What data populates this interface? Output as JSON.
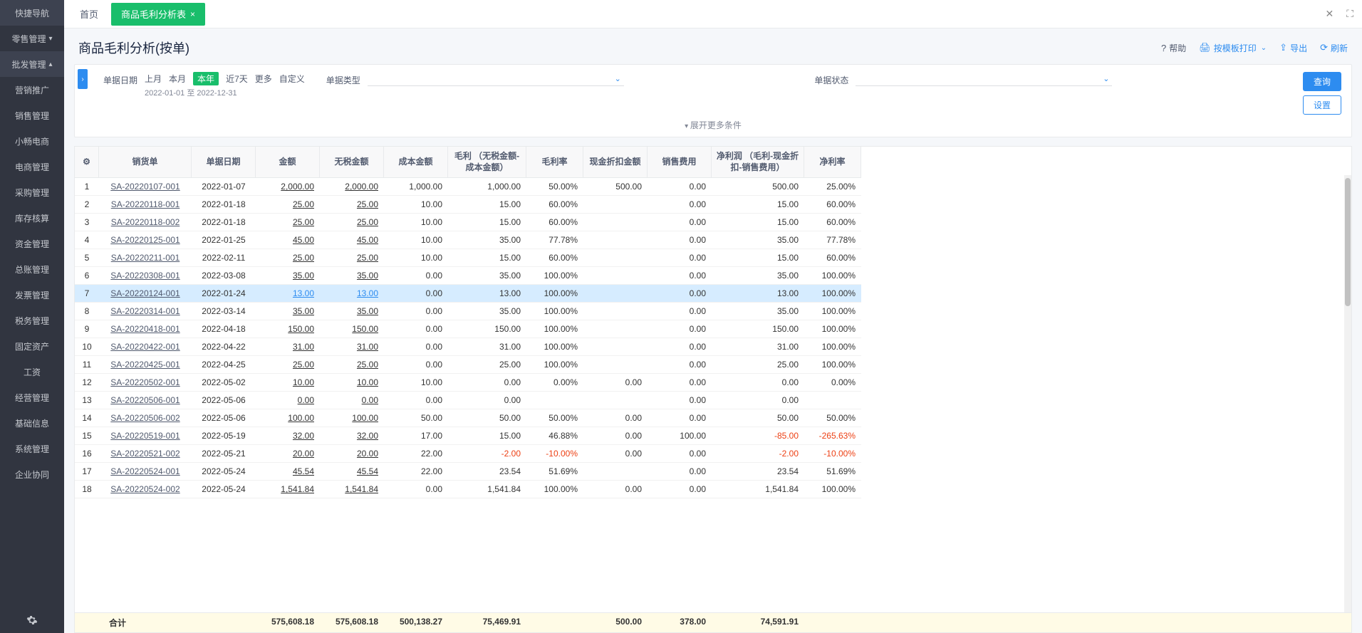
{
  "sidebar": {
    "items": [
      {
        "label": "快捷导航",
        "caret": ""
      },
      {
        "label": "零售管理",
        "caret": "▾"
      },
      {
        "label": "批发管理",
        "caret": "▴",
        "expanded": true,
        "children": [
          {
            "label": "营销推广"
          },
          {
            "label": "销售管理"
          }
        ]
      },
      {
        "label": "小畅电商",
        "caret": ""
      },
      {
        "label": "电商管理",
        "caret": ""
      },
      {
        "label": "采购管理",
        "caret": ""
      },
      {
        "label": "库存核算",
        "caret": ""
      },
      {
        "label": "资金管理",
        "caret": ""
      },
      {
        "label": "总账管理",
        "caret": ""
      },
      {
        "label": "发票管理",
        "caret": ""
      },
      {
        "label": "税务管理",
        "caret": ""
      },
      {
        "label": "固定资产",
        "caret": ""
      },
      {
        "label": "工资",
        "caret": ""
      },
      {
        "label": "经营管理",
        "caret": ""
      },
      {
        "label": "基础信息",
        "caret": ""
      },
      {
        "label": "系统管理",
        "caret": ""
      },
      {
        "label": "企业协同",
        "caret": ""
      }
    ]
  },
  "tabs": [
    {
      "label": "首页",
      "active": false,
      "closable": false
    },
    {
      "label": "商品毛利分析表",
      "active": true,
      "closable": true
    }
  ],
  "page": {
    "title": "商品毛利分析(按单)"
  },
  "header_actions": {
    "help": "帮助",
    "print": "按模板打印",
    "export": "导出",
    "refresh": "刷新"
  },
  "filters": {
    "date_label": "单据日期",
    "date_opts": [
      "上月",
      "本月",
      "本年",
      "近7天",
      "更多",
      "自定义"
    ],
    "date_active": "本年",
    "date_range": "2022-01-01 至 2022-12-31",
    "type_label": "单据类型",
    "status_label": "单据状态",
    "query_btn": "查询",
    "settings_btn": "设置",
    "expand_more": "展开更多条件"
  },
  "columns": [
    "⚙",
    "销货单",
    "单据日期",
    "金额",
    "无税金额",
    "成本金额",
    "毛利\n（无税金额-成本金额）",
    "毛利率",
    "现金折扣金额",
    "销售费用",
    "净利润\n（毛利-现金折扣-销售费用）",
    "净利率"
  ],
  "rows": [
    {
      "no": "SA-20220107-001",
      "date": "2022-01-07",
      "amt": "2,000.00",
      "notax": "2,000.00",
      "cost": "1,000.00",
      "gp": "1,000.00",
      "gpr": "50.00%",
      "cash": "500.00",
      "fee": "0.00",
      "np": "500.00",
      "npr": "25.00%"
    },
    {
      "no": "SA-20220118-001",
      "date": "2022-01-18",
      "amt": "25.00",
      "notax": "25.00",
      "cost": "10.00",
      "gp": "15.00",
      "gpr": "60.00%",
      "cash": "",
      "fee": "0.00",
      "np": "15.00",
      "npr": "60.00%"
    },
    {
      "no": "SA-20220118-002",
      "date": "2022-01-18",
      "amt": "25.00",
      "notax": "25.00",
      "cost": "10.00",
      "gp": "15.00",
      "gpr": "60.00%",
      "cash": "",
      "fee": "0.00",
      "np": "15.00",
      "npr": "60.00%"
    },
    {
      "no": "SA-20220125-001",
      "date": "2022-01-25",
      "amt": "45.00",
      "notax": "45.00",
      "cost": "10.00",
      "gp": "35.00",
      "gpr": "77.78%",
      "cash": "",
      "fee": "0.00",
      "np": "35.00",
      "npr": "77.78%"
    },
    {
      "no": "SA-20220211-001",
      "date": "2022-02-11",
      "amt": "25.00",
      "notax": "25.00",
      "cost": "10.00",
      "gp": "15.00",
      "gpr": "60.00%",
      "cash": "",
      "fee": "0.00",
      "np": "15.00",
      "npr": "60.00%"
    },
    {
      "no": "SA-20220308-001",
      "date": "2022-03-08",
      "amt": "35.00",
      "notax": "35.00",
      "cost": "0.00",
      "gp": "35.00",
      "gpr": "100.00%",
      "cash": "",
      "fee": "0.00",
      "np": "35.00",
      "npr": "100.00%"
    },
    {
      "no": "SA-20220124-001",
      "date": "2022-01-24",
      "amt": "13.00",
      "notax": "13.00",
      "cost": "0.00",
      "gp": "13.00",
      "gpr": "100.00%",
      "cash": "",
      "fee": "0.00",
      "np": "13.00",
      "npr": "100.00%",
      "hl": true
    },
    {
      "no": "SA-20220314-001",
      "date": "2022-03-14",
      "amt": "35.00",
      "notax": "35.00",
      "cost": "0.00",
      "gp": "35.00",
      "gpr": "100.00%",
      "cash": "",
      "fee": "0.00",
      "np": "35.00",
      "npr": "100.00%"
    },
    {
      "no": "SA-20220418-001",
      "date": "2022-04-18",
      "amt": "150.00",
      "notax": "150.00",
      "cost": "0.00",
      "gp": "150.00",
      "gpr": "100.00%",
      "cash": "",
      "fee": "0.00",
      "np": "150.00",
      "npr": "100.00%"
    },
    {
      "no": "SA-20220422-001",
      "date": "2022-04-22",
      "amt": "31.00",
      "notax": "31.00",
      "cost": "0.00",
      "gp": "31.00",
      "gpr": "100.00%",
      "cash": "",
      "fee": "0.00",
      "np": "31.00",
      "npr": "100.00%"
    },
    {
      "no": "SA-20220425-001",
      "date": "2022-04-25",
      "amt": "25.00",
      "notax": "25.00",
      "cost": "0.00",
      "gp": "25.00",
      "gpr": "100.00%",
      "cash": "",
      "fee": "0.00",
      "np": "25.00",
      "npr": "100.00%"
    },
    {
      "no": "SA-20220502-001",
      "date": "2022-05-02",
      "amt": "10.00",
      "notax": "10.00",
      "cost": "10.00",
      "gp": "0.00",
      "gpr": "0.00%",
      "cash": "0.00",
      "fee": "0.00",
      "np": "0.00",
      "npr": "0.00%"
    },
    {
      "no": "SA-20220506-001",
      "date": "2022-05-06",
      "amt": "0.00",
      "notax": "0.00",
      "cost": "0.00",
      "gp": "0.00",
      "gpr": "",
      "cash": "",
      "fee": "0.00",
      "np": "0.00",
      "npr": ""
    },
    {
      "no": "SA-20220506-002",
      "date": "2022-05-06",
      "amt": "100.00",
      "notax": "100.00",
      "cost": "50.00",
      "gp": "50.00",
      "gpr": "50.00%",
      "cash": "0.00",
      "fee": "0.00",
      "np": "50.00",
      "npr": "50.00%"
    },
    {
      "no": "SA-20220519-001",
      "date": "2022-05-19",
      "amt": "32.00",
      "notax": "32.00",
      "cost": "17.00",
      "gp": "15.00",
      "gpr": "46.88%",
      "cash": "0.00",
      "fee": "100.00",
      "np": "-85.00",
      "npr": "-265.63%",
      "neg": true
    },
    {
      "no": "SA-20220521-002",
      "date": "2022-05-21",
      "amt": "20.00",
      "notax": "20.00",
      "cost": "22.00",
      "gp": "-2.00",
      "gpr": "-10.00%",
      "cash": "0.00",
      "fee": "0.00",
      "np": "-2.00",
      "npr": "-10.00%",
      "neg": true,
      "gpneg": true
    },
    {
      "no": "SA-20220524-001",
      "date": "2022-05-24",
      "amt": "45.54",
      "notax": "45.54",
      "cost": "22.00",
      "gp": "23.54",
      "gpr": "51.69%",
      "cash": "",
      "fee": "0.00",
      "np": "23.54",
      "npr": "51.69%"
    },
    {
      "no": "SA-20220524-002",
      "date": "2022-05-24",
      "amt": "1,541.84",
      "notax": "1,541.84",
      "cost": "0.00",
      "gp": "1,541.84",
      "gpr": "100.00%",
      "cash": "0.00",
      "fee": "0.00",
      "np": "1,541.84",
      "npr": "100.00%"
    }
  ],
  "total": {
    "label": "合计",
    "amt": "575,608.18",
    "notax": "575,608.18",
    "cost": "500,138.27",
    "gp": "75,469.91",
    "gpr": "",
    "cash": "500.00",
    "fee": "378.00",
    "np": "74,591.91",
    "npr": ""
  }
}
